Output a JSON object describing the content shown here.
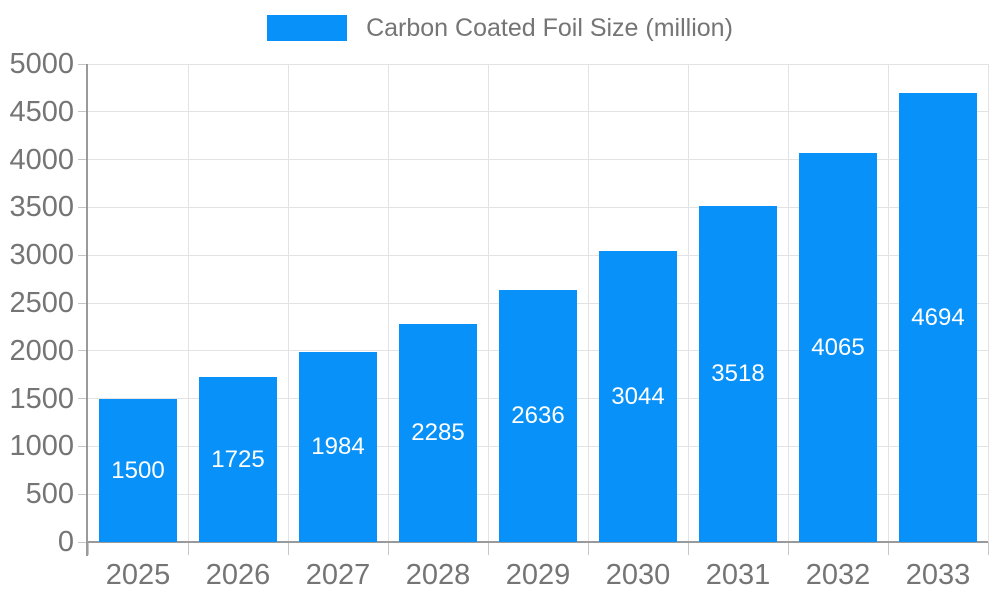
{
  "legend": {
    "label": "Carbon Coated Foil Size (million)",
    "swatch_color": "#0891f9"
  },
  "chart_data": {
    "type": "bar",
    "title": "Carbon Coated Foil Size (million)",
    "categories": [
      "2025",
      "2026",
      "2027",
      "2028",
      "2029",
      "2030",
      "2031",
      "2032",
      "2033"
    ],
    "values": [
      1500,
      1725,
      1984,
      2285,
      2636,
      3044,
      3518,
      4065,
      4694
    ],
    "series_name": "Carbon Coated Foil Size (million)",
    "xlabel": "",
    "ylabel": "",
    "ylim": [
      0,
      5000
    ],
    "yticks": [
      0,
      500,
      1000,
      1500,
      2000,
      2500,
      3000,
      3500,
      4000,
      4500,
      5000
    ],
    "grid": true,
    "legend_position": "top",
    "bar_color": "#0891f9",
    "value_label_color": "#ffffff",
    "axis_text_color": "#757575",
    "grid_color": "#e3e3e3",
    "axis_line_color": "#9a9a9a",
    "tick_color": "#c6c6c6"
  }
}
